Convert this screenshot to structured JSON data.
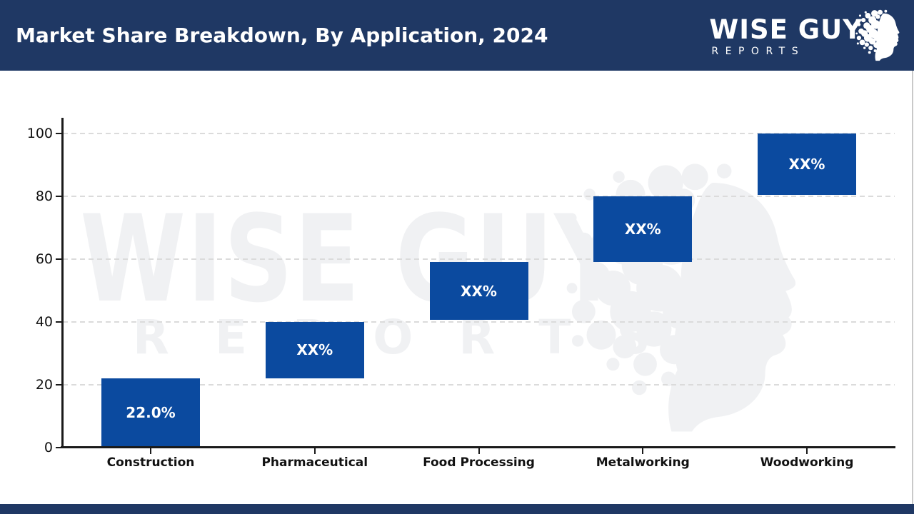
{
  "header": {
    "title": "Market Share Breakdown, By Application, 2024",
    "logo": {
      "primary": "WISE GUY",
      "secondary": "REPORTS"
    }
  },
  "watermark": {
    "primary": "WISE GUY",
    "secondary": "REPORTS"
  },
  "chart_data": {
    "type": "bar",
    "subtype": "waterfall",
    "title": "Market Share Breakdown, By Application, 2024",
    "categories": [
      "Construction",
      "Pharmaceutical",
      "Food Processing",
      "Metalworking",
      "Woodworking"
    ],
    "segments": [
      {
        "category": "Construction",
        "start": 0,
        "end": 22,
        "label": "22.0%"
      },
      {
        "category": "Pharmaceutical",
        "start": 22,
        "end": 40,
        "label": "XX%"
      },
      {
        "category": "Food Processing",
        "start": 40.5,
        "end": 59,
        "label": "XX%"
      },
      {
        "category": "Metalworking",
        "start": 59,
        "end": 80,
        "label": "XX%"
      },
      {
        "category": "Woodworking",
        "start": 80.5,
        "end": 100,
        "label": "XX%"
      }
    ],
    "yticks": [
      0,
      20,
      40,
      60,
      80,
      100
    ],
    "ylim": [
      0,
      105
    ],
    "xlabel": "",
    "ylabel": "",
    "grid": "horizontal-dashed",
    "legend": "none",
    "colors": {
      "bar": "#0b4a9f",
      "bar_label": "#ffffff",
      "header_bg": "#1f3864",
      "footer_bg": "#1f3864",
      "gridline": "#dbdbdb",
      "axis": "#1a1a1a",
      "watermark": "#f0f1f3"
    }
  }
}
